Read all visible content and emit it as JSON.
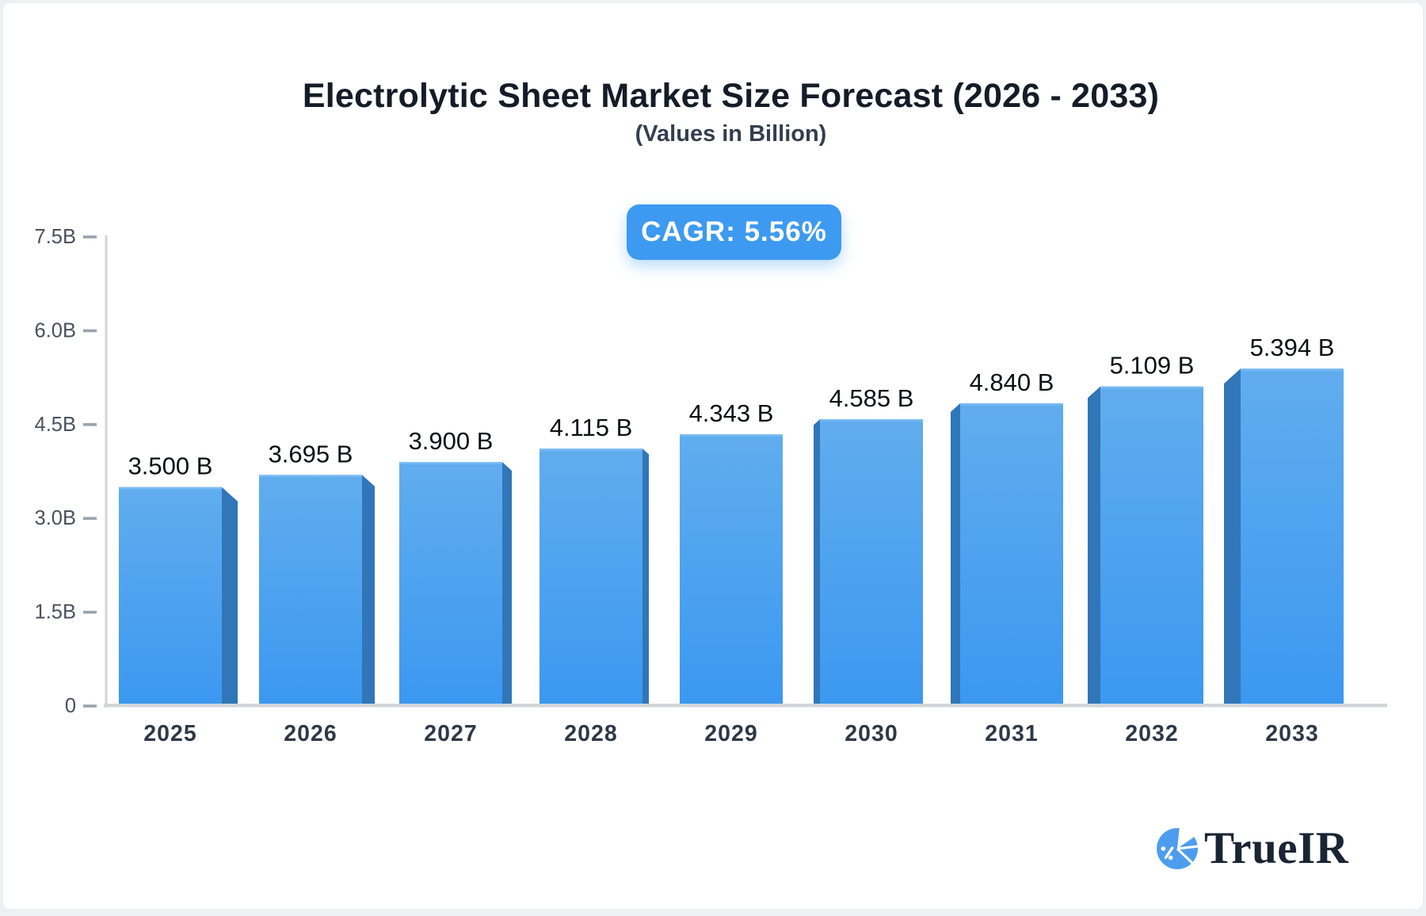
{
  "page": {
    "background_color": "#eef1f3",
    "card_color": "#ffffff"
  },
  "header": {
    "title": "Electrolytic Sheet Market Size Forecast (2026 - 2033)",
    "subtitle": "(Values in Billion)",
    "cagr_badge": "CAGR: 5.56%",
    "badge_color": "#3d9af0"
  },
  "chart_data": {
    "type": "bar",
    "title": "Electrolytic Sheet Market Size Forecast (2026 - 2033)",
    "subtitle": "(Values in Billion)",
    "cagr": "5.56%",
    "unit": "Billion",
    "categories": [
      "2025",
      "2026",
      "2027",
      "2028",
      "2029",
      "2030",
      "2031",
      "2032",
      "2033"
    ],
    "values": [
      3.5,
      3.695,
      3.9,
      4.115,
      4.343,
      4.585,
      4.84,
      5.109,
      5.394
    ],
    "value_labels": [
      "3.500 B",
      "3.695 B",
      "3.900 B",
      "4.115 B",
      "4.343 B",
      "4.585 B",
      "4.840 B",
      "5.109 B",
      "5.394 B"
    ],
    "xlabel": "",
    "ylabel": "",
    "ylim": [
      0,
      7.5
    ],
    "yticks": [
      {
        "value": 0,
        "label": "0"
      },
      {
        "value": 1.5,
        "label": "1.5B"
      },
      {
        "value": 3.0,
        "label": "3.0B"
      },
      {
        "value": 4.5,
        "label": "4.5B"
      },
      {
        "value": 6.0,
        "label": "6.0B"
      },
      {
        "value": 7.5,
        "label": "7.5B"
      }
    ],
    "grid": false,
    "legend": false,
    "bar_style": "3d-perspective",
    "colors": {
      "bar_face_top": "#61adee",
      "bar_face_bottom": "#3b98f0",
      "bar_side": "#3076b8",
      "bar_top_edge": "#7abaf3",
      "axis_line": "#d2d6da",
      "tick_dash": "#9aa3ac",
      "y_tick_label": "#49525f",
      "x_tick_label": "#2e3948",
      "value_label": "#0b0f14"
    }
  },
  "branding": {
    "name": "TrueIR",
    "logo_icon": "pie-percent-icon",
    "icon_color": "#4d9def",
    "text_color": "#1a2433"
  }
}
